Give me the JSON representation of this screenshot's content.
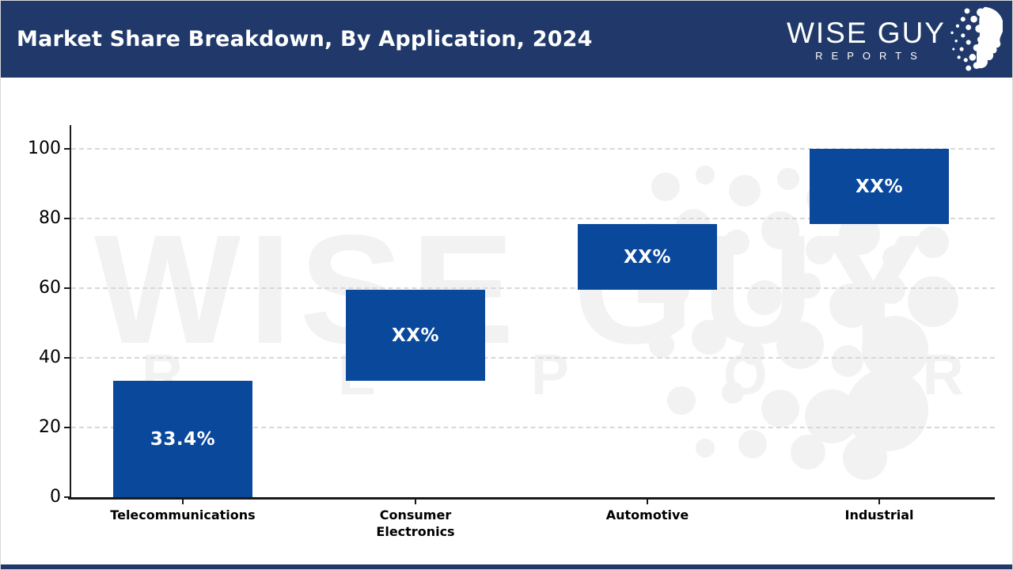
{
  "header": {
    "title": "Market Share Breakdown, By Application, 2024",
    "logo_line1": "WISE GUY",
    "logo_line2": "REPORTS"
  },
  "watermark": {
    "line1": "WISE GUY",
    "line2": "R E P O R T S"
  },
  "chart_data": {
    "type": "bar",
    "subtype": "waterfall",
    "title": "Market Share Breakdown, By Application, 2024",
    "categories": [
      "Telecommunications",
      "Consumer Electronics",
      "Automotive",
      "Industrial"
    ],
    "categories_display": [
      "Telecommunications",
      "Consumer\nElectronics",
      "Automotive",
      "Industrial"
    ],
    "segments": [
      {
        "category": "Telecommunications",
        "start": 0,
        "end": 33.4,
        "label": "33.4%"
      },
      {
        "category": "Consumer Electronics",
        "start": 33.4,
        "end": 59.5,
        "label": "XX%"
      },
      {
        "category": "Automotive",
        "start": 59.5,
        "end": 78.4,
        "label": "XX%"
      },
      {
        "category": "Industrial",
        "start": 78.4,
        "end": 100,
        "label": "XX%"
      }
    ],
    "xlabel": "",
    "ylabel": "",
    "yticks": [
      0,
      20,
      40,
      60,
      80,
      100
    ],
    "ylim": [
      0,
      107
    ],
    "grid": "horizontal-dashed",
    "legend": "none"
  },
  "colors": {
    "header_bg": "#20396a",
    "footer_bg": "#20396a",
    "bar_blue": "#0a489c",
    "bar_value_text": "#ffffff",
    "watermark_gray": "#f2f2f2",
    "gridline_gray": "#d8d8d8",
    "axis_black": "#1a1a1a",
    "frame_border": "#d9d9d9"
  }
}
